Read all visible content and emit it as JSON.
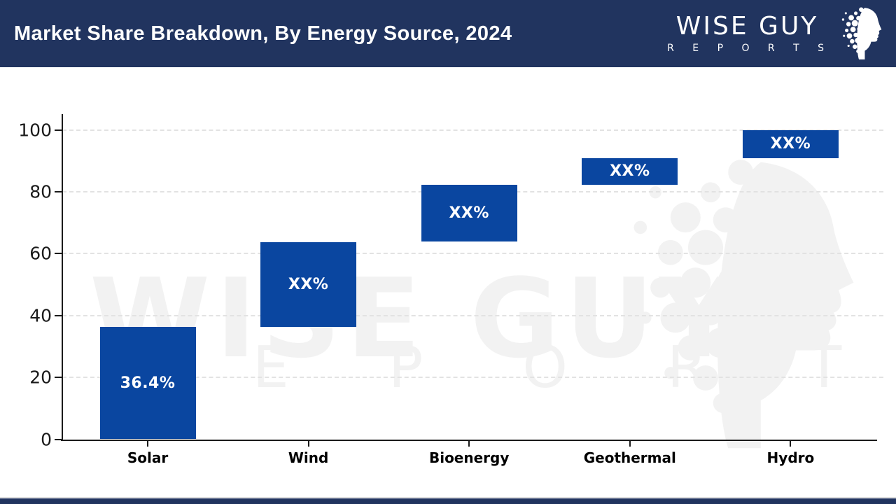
{
  "header": {
    "title": "Market Share Breakdown, By Energy Source, 2024",
    "bg_color": "#21345f",
    "logo": {
      "line1": "WISE GUY",
      "line2": "R E P O R T S",
      "head_icon": "dotted-head-profile"
    }
  },
  "watermark": {
    "line1": "WISE GUY",
    "line2": "R E P O R T S",
    "color": "#f2f2f2"
  },
  "chart_data": {
    "type": "bar",
    "subtype": "waterfall",
    "title": "Market Share Breakdown, By Energy Source, 2024",
    "categories": [
      "Solar",
      "Wind",
      "Bioenergy",
      "Geothermal",
      "Hydro"
    ],
    "segments": [
      {
        "category": "Solar",
        "start": 0,
        "end": 36.4,
        "label": "36.4%"
      },
      {
        "category": "Wind",
        "start": 36.4,
        "end": 63.8,
        "label": "XX%"
      },
      {
        "category": "Bioenergy",
        "start": 63.8,
        "end": 82.3,
        "label": "XX%"
      },
      {
        "category": "Geothermal",
        "start": 82.3,
        "end": 90.8,
        "label": "XX%"
      },
      {
        "category": "Hydro",
        "start": 90.8,
        "end": 100,
        "label": "XX%"
      }
    ],
    "ylim": [
      0,
      105
    ],
    "yticks": [
      0,
      20,
      40,
      60,
      80,
      100
    ],
    "grid": "horizontal-dashed",
    "legend": "none",
    "bar_color": "#0a46a0",
    "bar_label_color": "#ffffff",
    "axis_color": "#1a1a1a",
    "grid_color": "#e2e2e2"
  },
  "footer": {
    "bar_color": "#21345f"
  }
}
